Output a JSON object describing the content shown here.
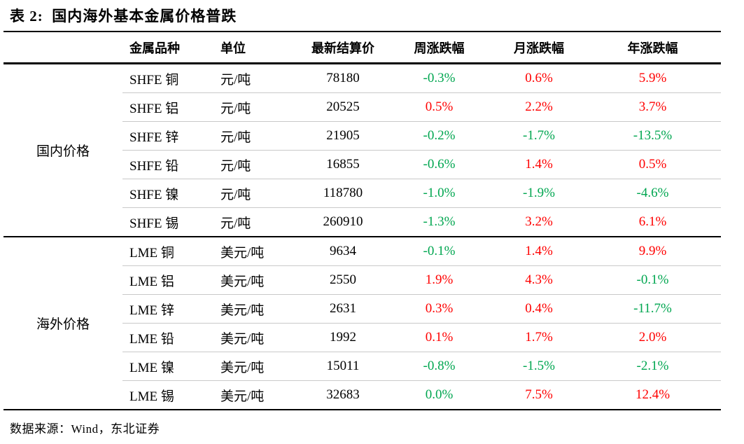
{
  "title": "表 2:  国内海外基本金属价格普跌",
  "columns": [
    "金属品种",
    "单位",
    "最新结算价",
    "周涨跌幅",
    "月涨跌幅",
    "年涨跌幅"
  ],
  "groups": [
    {
      "label": "国内价格",
      "rows": [
        {
          "name": "SHFE 铜",
          "unit": "元/吨",
          "price": "78180",
          "week": {
            "value": "-0.3%",
            "direction": "down"
          },
          "month": {
            "value": "0.6%",
            "direction": "up"
          },
          "year": {
            "value": "5.9%",
            "direction": "up"
          }
        },
        {
          "name": "SHFE 铝",
          "unit": "元/吨",
          "price": "20525",
          "week": {
            "value": "0.5%",
            "direction": "up"
          },
          "month": {
            "value": "2.2%",
            "direction": "up"
          },
          "year": {
            "value": "3.7%",
            "direction": "up"
          }
        },
        {
          "name": "SHFE 锌",
          "unit": "元/吨",
          "price": "21905",
          "week": {
            "value": "-0.2%",
            "direction": "down"
          },
          "month": {
            "value": "-1.7%",
            "direction": "down"
          },
          "year": {
            "value": "-13.5%",
            "direction": "down"
          }
        },
        {
          "name": "SHFE 铅",
          "unit": "元/吨",
          "price": "16855",
          "week": {
            "value": "-0.6%",
            "direction": "down"
          },
          "month": {
            "value": "1.4%",
            "direction": "up"
          },
          "year": {
            "value": "0.5%",
            "direction": "up"
          }
        },
        {
          "name": "SHFE 镍",
          "unit": "元/吨",
          "price": "118780",
          "week": {
            "value": "-1.0%",
            "direction": "down"
          },
          "month": {
            "value": "-1.9%",
            "direction": "down"
          },
          "year": {
            "value": "-4.6%",
            "direction": "down"
          }
        },
        {
          "name": "SHFE 锡",
          "unit": "元/吨",
          "price": "260910",
          "week": {
            "value": "-1.3%",
            "direction": "down"
          },
          "month": {
            "value": "3.2%",
            "direction": "up"
          },
          "year": {
            "value": "6.1%",
            "direction": "up"
          }
        }
      ]
    },
    {
      "label": "海外价格",
      "rows": [
        {
          "name": "LME 铜",
          "unit": "美元/吨",
          "price": "9634",
          "week": {
            "value": "-0.1%",
            "direction": "down"
          },
          "month": {
            "value": "1.4%",
            "direction": "up"
          },
          "year": {
            "value": "9.9%",
            "direction": "up"
          }
        },
        {
          "name": "LME 铝",
          "unit": "美元/吨",
          "price": "2550",
          "week": {
            "value": "1.9%",
            "direction": "up"
          },
          "month": {
            "value": "4.3%",
            "direction": "up"
          },
          "year": {
            "value": "-0.1%",
            "direction": "down"
          }
        },
        {
          "name": "LME 锌",
          "unit": "美元/吨",
          "price": "2631",
          "week": {
            "value": "0.3%",
            "direction": "up"
          },
          "month": {
            "value": "0.4%",
            "direction": "up"
          },
          "year": {
            "value": "-11.7%",
            "direction": "down"
          }
        },
        {
          "name": "LME 铅",
          "unit": "美元/吨",
          "price": "1992",
          "week": {
            "value": "0.1%",
            "direction": "up"
          },
          "month": {
            "value": "1.7%",
            "direction": "up"
          },
          "year": {
            "value": "2.0%",
            "direction": "up"
          }
        },
        {
          "name": "LME 镍",
          "unit": "美元/吨",
          "price": "15011",
          "week": {
            "value": "-0.8%",
            "direction": "down"
          },
          "month": {
            "value": "-1.5%",
            "direction": "down"
          },
          "year": {
            "value": "-2.1%",
            "direction": "down"
          }
        },
        {
          "name": "LME 锡",
          "unit": "美元/吨",
          "price": "32683",
          "week": {
            "value": "0.0%",
            "direction": "down"
          },
          "month": {
            "value": "7.5%",
            "direction": "up"
          },
          "year": {
            "value": "12.4%",
            "direction": "up"
          }
        }
      ]
    }
  ],
  "source": "数据来源：Wind，东北证券",
  "colors": {
    "up_red": "#ff0000",
    "down_green": "#00a650",
    "row_separator_gray": "#c9c9c9",
    "rule_black": "#000000"
  }
}
